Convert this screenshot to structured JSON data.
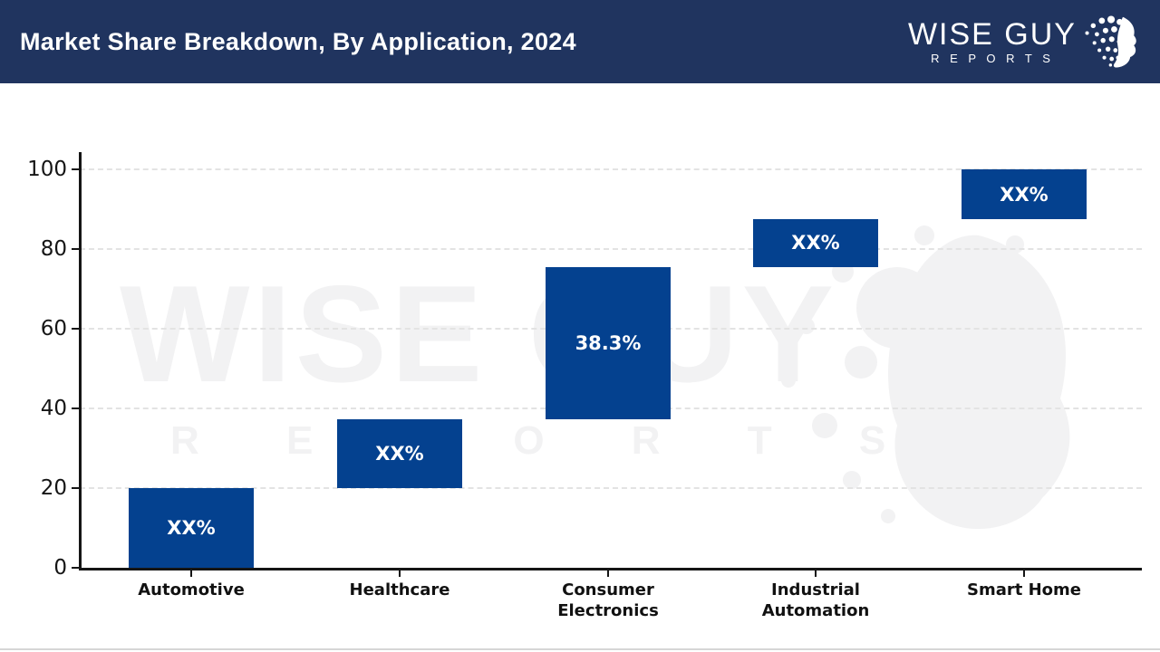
{
  "header": {
    "title": "Market Share Breakdown, By Application, 2024",
    "bg_color": "#20345f",
    "logo": {
      "wordmark": "WISE GUY",
      "subtext": "R E P O R T S"
    }
  },
  "watermark": {
    "line1": "WISE GUY",
    "line2": "R E P O R T S"
  },
  "chart_data": {
    "type": "bar",
    "subtype": "floating-waterfall",
    "title": "Market Share Breakdown, By Application, 2024",
    "categories": [
      "Automotive",
      "Healthcare",
      "Consumer Electronics",
      "Industrial Automation",
      "Smart Home"
    ],
    "series": [
      {
        "name": "Market share (%)",
        "segments": [
          {
            "category": "Automotive",
            "start": 0,
            "end": 20,
            "label": "XX%"
          },
          {
            "category": "Healthcare",
            "start": 20,
            "end": 37.2,
            "label": "XX%"
          },
          {
            "category": "Consumer Electronics",
            "start": 37.2,
            "end": 75.5,
            "label": "38.3%"
          },
          {
            "category": "Industrial Automation",
            "start": 75.5,
            "end": 87.5,
            "label": "XX%"
          },
          {
            "category": "Smart Home",
            "start": 87.5,
            "end": 100,
            "label": "XX%"
          }
        ]
      }
    ],
    "ylim": [
      0,
      100
    ],
    "yticks": [
      0,
      20,
      40,
      60,
      80,
      100
    ],
    "xlabel": "",
    "ylabel": "",
    "bar_color": "#04418f",
    "bar_label_color": "#ffffff",
    "grid": "horizontal-dashed",
    "legend": "none"
  }
}
